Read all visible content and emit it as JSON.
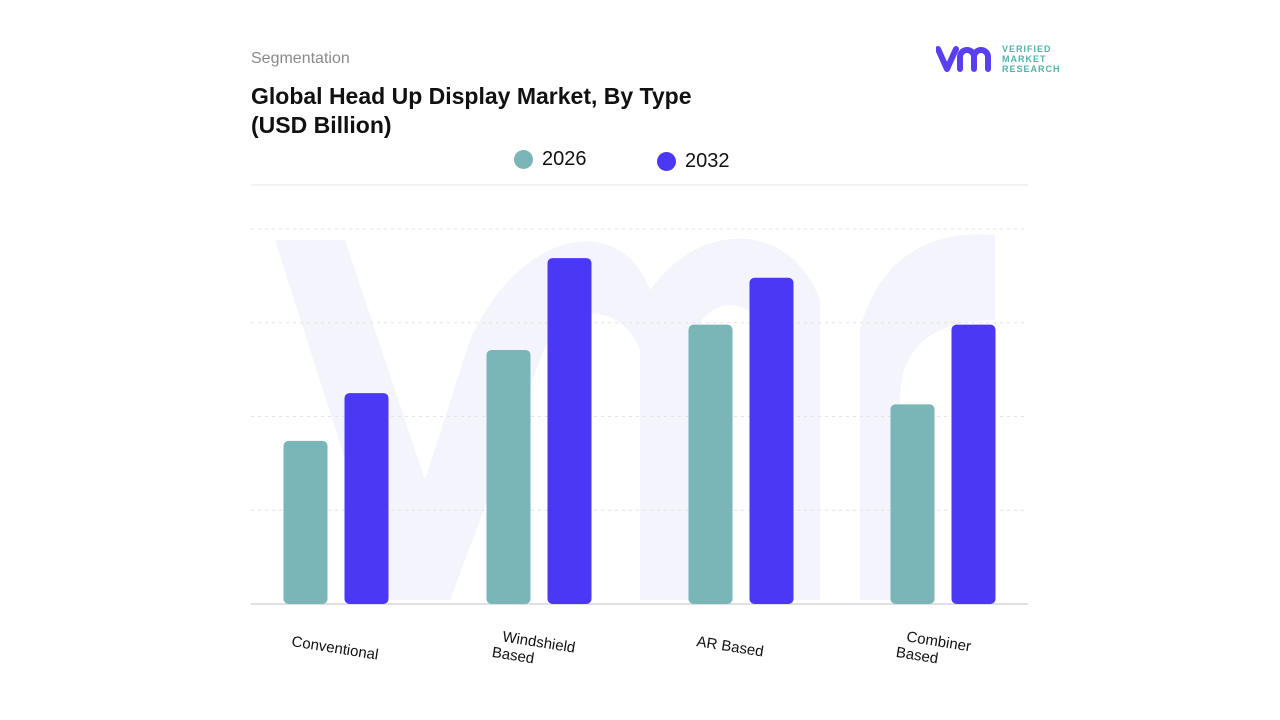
{
  "header": {
    "segment_label": "Segmentation",
    "title_line1": "Global Head Up Display Market, By Type",
    "title_line2": "(USD Billion)"
  },
  "logo": {
    "line1": "VERIFIED",
    "line2": "MARKET",
    "line3": "RESEARCH"
  },
  "colors": {
    "2026": "#7ab5b8",
    "2032": "#4b38f5",
    "brand_purple": "#5a3ff0",
    "brand_teal": "#4fb3a9"
  },
  "chart_data": {
    "type": "bar",
    "title": "Global Head Up Display Market, By Type (USD Billion)",
    "categories": [
      [
        "Conventional"
      ],
      [
        "Windshield",
        "Based"
      ],
      [
        "AR Based"
      ],
      [
        "Combiner",
        "Based"
      ]
    ],
    "category_names": [
      "Conventional",
      "Windshield Based",
      "AR Based",
      "Combiner Based"
    ],
    "series": [
      {
        "name": "2026",
        "values": [
          1.74,
          2.71,
          2.98,
          2.13
        ]
      },
      {
        "name": "2032",
        "values": [
          2.25,
          3.69,
          3.48,
          2.98
        ]
      }
    ],
    "ylim": [
      0,
      4
    ],
    "grid": true,
    "y_tick_labels_shown": false,
    "legend_placement": "top-center",
    "xlabel": "",
    "ylabel": ""
  }
}
